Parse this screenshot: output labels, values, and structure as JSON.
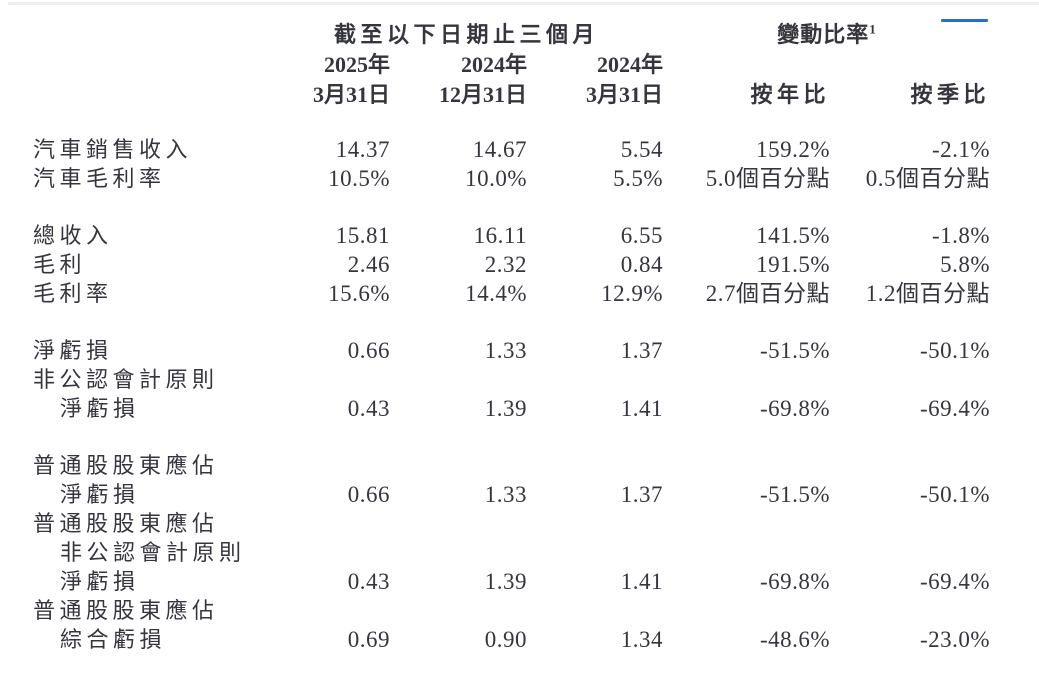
{
  "page": {
    "colors": {
      "text": "#35353d",
      "top_strip": "#ededf3",
      "accent_dash": "#2471c7",
      "background": "#ffffff"
    }
  },
  "table": {
    "header": {
      "period_group_label": "截至以下日期止三個月",
      "change_group_label": "變動比率",
      "change_group_footnote": "1",
      "period_columns": [
        {
          "year": "2025年",
          "date": "3月31日"
        },
        {
          "year": "2024年",
          "date": "12月31日"
        },
        {
          "year": "2024年",
          "date": "3月31日"
        }
      ],
      "change_columns": [
        {
          "label": "按年比"
        },
        {
          "label": "按季比"
        }
      ]
    },
    "rows": [
      {
        "label": "汽車銷售收入",
        "indent": false,
        "spacer_before": false,
        "values": [
          "14.37",
          "14.67",
          "5.54",
          "159.2%",
          "-2.1%"
        ]
      },
      {
        "label": "汽車毛利率",
        "indent": false,
        "spacer_before": false,
        "values": [
          "10.5%",
          "10.0%",
          "5.5%",
          "5.0個百分點",
          "0.5個百分點"
        ]
      },
      {
        "label": "總收入",
        "indent": false,
        "spacer_before": true,
        "values": [
          "15.81",
          "16.11",
          "6.55",
          "141.5%",
          "-1.8%"
        ]
      },
      {
        "label": "毛利",
        "indent": false,
        "spacer_before": false,
        "values": [
          "2.46",
          "2.32",
          "0.84",
          "191.5%",
          "5.8%"
        ]
      },
      {
        "label": "毛利率",
        "indent": false,
        "spacer_before": false,
        "values": [
          "15.6%",
          "14.4%",
          "12.9%",
          "2.7個百分點",
          "1.2個百分點"
        ]
      },
      {
        "label": "淨虧損",
        "indent": false,
        "spacer_before": true,
        "values": [
          "0.66",
          "1.33",
          "1.37",
          "-51.5%",
          "-50.1%"
        ]
      },
      {
        "label": "非公認會計原則",
        "indent": false,
        "spacer_before": false,
        "values": []
      },
      {
        "label": "淨虧損",
        "indent": true,
        "spacer_before": false,
        "values": [
          "0.43",
          "1.39",
          "1.41",
          "-69.8%",
          "-69.4%"
        ]
      },
      {
        "label": "普通股股東應佔",
        "indent": false,
        "spacer_before": true,
        "values": []
      },
      {
        "label": "淨虧損",
        "indent": true,
        "spacer_before": false,
        "values": [
          "0.66",
          "1.33",
          "1.37",
          "-51.5%",
          "-50.1%"
        ]
      },
      {
        "label": "普通股股東應佔",
        "indent": false,
        "spacer_before": false,
        "values": []
      },
      {
        "label": "非公認會計原則",
        "indent": true,
        "spacer_before": false,
        "values": []
      },
      {
        "label": "淨虧損",
        "indent": true,
        "spacer_before": false,
        "values": [
          "0.43",
          "1.39",
          "1.41",
          "-69.8%",
          "-69.4%"
        ]
      },
      {
        "label": "普通股股東應佔",
        "indent": false,
        "spacer_before": false,
        "values": []
      },
      {
        "label": "綜合虧損",
        "indent": true,
        "spacer_before": false,
        "values": [
          "0.69",
          "0.90",
          "1.34",
          "-48.6%",
          "-23.0%"
        ]
      }
    ]
  }
}
